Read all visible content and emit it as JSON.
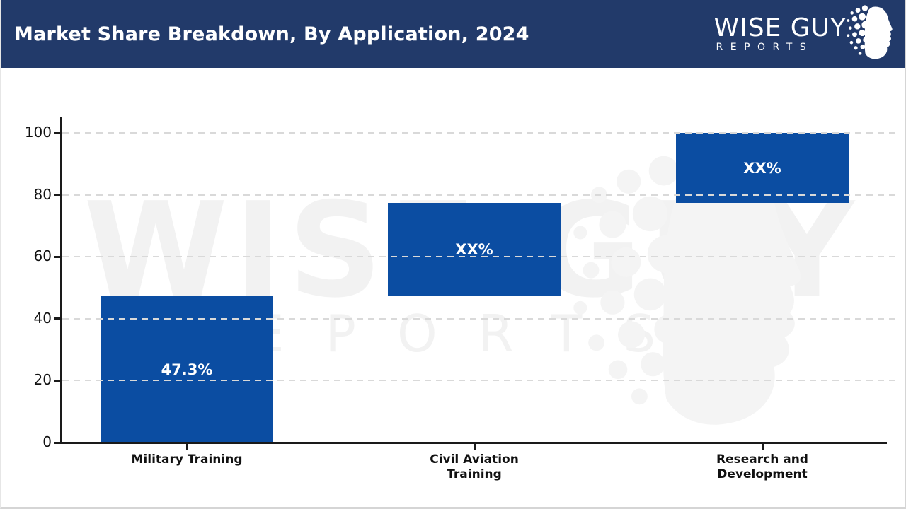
{
  "header": {
    "title": "Market Share Breakdown, By Application, 2024",
    "logo": {
      "line1": "WISE GUY",
      "line2": "REPORTS",
      "icon": "dotted-face-profile"
    }
  },
  "watermark": {
    "line1": "WISE GUY",
    "line2": "REPORTS",
    "icon": "dotted-face-profile"
  },
  "colors": {
    "header_bg": "#223a6a",
    "bar": "#0b4da2",
    "axis": "#1a1a1a",
    "grid": "#d9d9d9",
    "watermark": "#f2f2f2",
    "page_border": "#d5d5d5"
  },
  "chart_data": {
    "type": "bar",
    "subtype": "floating-segment-waterfall",
    "title": "Market Share Breakdown, By Application, 2024",
    "categories": [
      [
        "Military Training"
      ],
      [
        "Civil Aviation",
        "Training"
      ],
      [
        "Research and",
        "Development"
      ]
    ],
    "segments": [
      {
        "category": "Military Training",
        "label": "47.3%",
        "start": 0,
        "end": 47.3
      },
      {
        "category": "Civil Aviation Training",
        "label": "XX%",
        "start": 47.3,
        "end": 77.3
      },
      {
        "category": "Research and Development",
        "label": "XX%",
        "start": 77.3,
        "end": 100
      }
    ],
    "yticks": [
      0,
      20,
      40,
      60,
      80,
      100
    ],
    "ylim": [
      0,
      105
    ],
    "xlabel": "",
    "ylabel": "",
    "grid": {
      "horizontal": true,
      "style": "dashed",
      "color": "#d9d9d9"
    },
    "legend": "none",
    "bar_color": "#0b4da2",
    "bar_label_color": "#ffffff"
  }
}
